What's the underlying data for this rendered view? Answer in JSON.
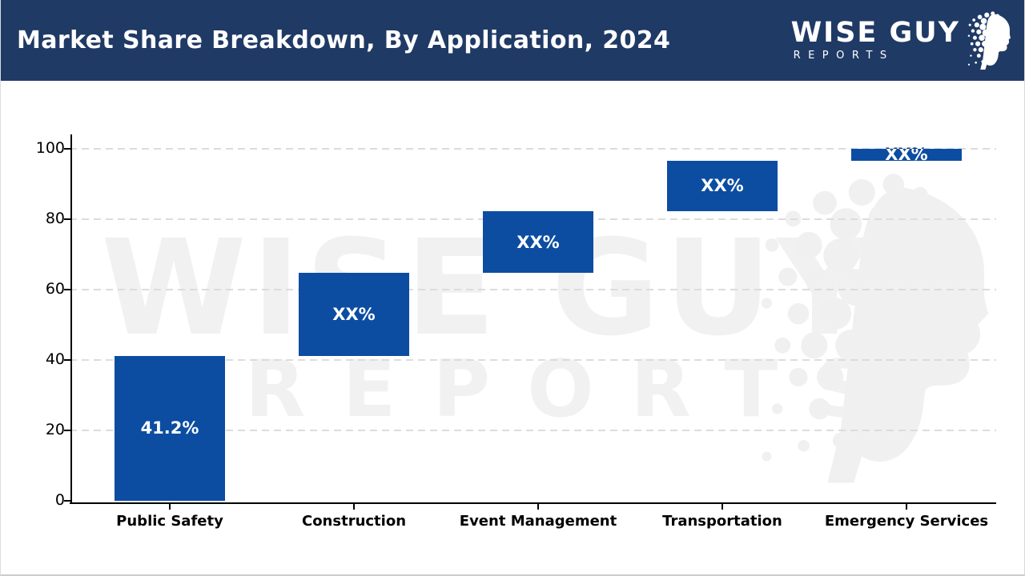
{
  "header": {
    "title": "Market Share Breakdown, By Application, 2024",
    "logo": {
      "name": "WISE GUY",
      "subtitle": "REPORTS"
    }
  },
  "watermark": {
    "line1": "WISE GUY",
    "line2": "REPORTS"
  },
  "icons": {
    "logo_head": "logo-head-icon",
    "watermark_head": "watermark-head-icon"
  },
  "colors": {
    "header_bg": "#203a66",
    "bar": "#0c4da2",
    "bar_label": "#ffffff",
    "bar_label_overflow": "#173866",
    "grid": "#dcdcdc",
    "axis": "#000000",
    "watermark": "#f1f1f1",
    "page_bg": "#ffffff"
  },
  "chart_data": {
    "type": "bar",
    "subtype": "waterfall",
    "title": "Market Share Breakdown, By Application, 2024",
    "categories": [
      "Public Safety",
      "Construction",
      "Event Management",
      "Transportation",
      "Emergency Services"
    ],
    "segments": [
      {
        "category": "Public Safety",
        "start": 0,
        "end": 41.2,
        "label": "41.2%"
      },
      {
        "category": "Construction",
        "start": 41.2,
        "end": 64.7,
        "label": "XX%"
      },
      {
        "category": "Event Management",
        "start": 64.7,
        "end": 82.3,
        "label": "XX%"
      },
      {
        "category": "Transportation",
        "start": 82.3,
        "end": 96.6,
        "label": "XX%"
      },
      {
        "category": "Emergency Services",
        "start": 96.6,
        "end": 100,
        "label": "XX%"
      }
    ],
    "ylim": [
      0,
      100
    ],
    "yticks": [
      0,
      20,
      40,
      60,
      80,
      100
    ],
    "xlabel": "",
    "ylabel": "",
    "legend": "none",
    "grid": {
      "axis": "y",
      "style": "dashed"
    }
  }
}
